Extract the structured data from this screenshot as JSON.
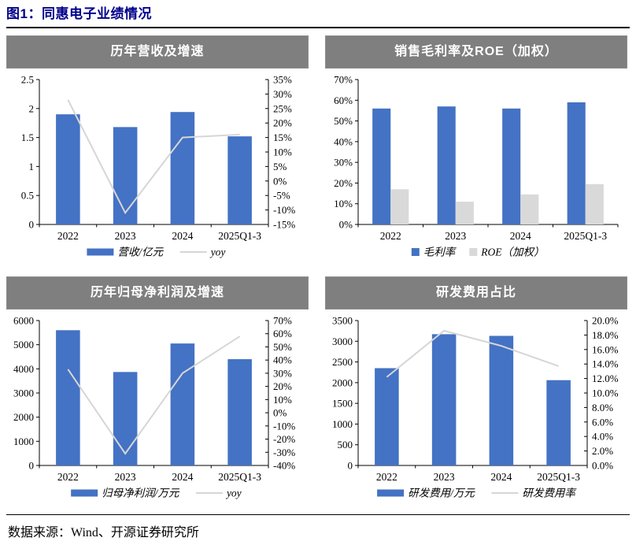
{
  "header": {
    "title": "图1：同惠电子业绩情况"
  },
  "footer": {
    "source": "数据来源：Wind、开源证券研究所"
  },
  "colors": {
    "accent_blue": "#4472C4",
    "gray_bar": "#D9D9D9",
    "line_gray": "#D6D6D6",
    "panel_header_bg": "#7F7F7F",
    "title_navy": "#00008B",
    "axis_black": "#000000"
  },
  "chart_data": [
    {
      "type": "bar+line",
      "title": "历年营收及增速",
      "categories": [
        "2022",
        "2023",
        "2024",
        "2025Q1-3"
      ],
      "bar_series": [
        {
          "name": "营收/亿元",
          "color": "#4472C4",
          "swatch": "bar",
          "values": [
            1.9,
            1.68,
            1.94,
            1.52
          ]
        }
      ],
      "line_series": [
        {
          "name": "yoy",
          "color": "#D6D6D6",
          "values": [
            0.28,
            -0.11,
            0.15,
            0.16
          ]
        }
      ],
      "left_axis": {
        "min": 0,
        "max": 2.5,
        "step": 0.5,
        "format": "num"
      },
      "right_axis": {
        "min": -0.15,
        "max": 0.35,
        "step": 0.05,
        "format": "pct0"
      },
      "grid": false,
      "legend_position": "bottom"
    },
    {
      "type": "bar",
      "title": "销售毛利率及ROE（加权）",
      "categories": [
        "2022",
        "2023",
        "2024",
        "2025Q1-3"
      ],
      "bar_series": [
        {
          "name": "毛利率",
          "color": "#4472C4",
          "swatch": "square",
          "values": [
            0.56,
            0.57,
            0.56,
            0.59
          ]
        },
        {
          "name": "ROE（加权）",
          "color": "#D9D9D9",
          "swatch": "square",
          "values": [
            0.17,
            0.11,
            0.145,
            0.195
          ]
        }
      ],
      "line_series": [],
      "left_axis": {
        "min": 0,
        "max": 0.7,
        "step": 0.1,
        "format": "pct0"
      },
      "right_axis": null,
      "grid": false,
      "legend_position": "bottom"
    },
    {
      "type": "bar+line",
      "title": "历年归母净利润及增速",
      "categories": [
        "2022",
        "2023",
        "2024",
        "2025Q1-3"
      ],
      "bar_series": [
        {
          "name": "归母净利润/万元",
          "color": "#4472C4",
          "swatch": "bar",
          "values": [
            5600,
            3870,
            5050,
            4400
          ]
        }
      ],
      "line_series": [
        {
          "name": "yoy",
          "color": "#D6D6D6",
          "values": [
            0.33,
            -0.31,
            0.3,
            0.58
          ]
        }
      ],
      "left_axis": {
        "min": 0,
        "max": 6000,
        "step": 1000,
        "format": "num"
      },
      "right_axis": {
        "min": -0.4,
        "max": 0.7,
        "step": 0.1,
        "format": "pct0"
      },
      "grid": false,
      "legend_position": "bottom"
    },
    {
      "type": "bar+line",
      "title": "研发费用占比",
      "categories": [
        "2022",
        "2023",
        "2024",
        "2025Q1-3"
      ],
      "bar_series": [
        {
          "name": "研发费用/万元",
          "color": "#4472C4",
          "swatch": "bar",
          "values": [
            2350,
            3170,
            3130,
            2060
          ]
        }
      ],
      "line_series": [
        {
          "name": "研发费用率",
          "color": "#D6D6D6",
          "values": [
            0.122,
            0.186,
            0.165,
            0.137
          ]
        }
      ],
      "left_axis": {
        "min": 0,
        "max": 3500,
        "step": 500,
        "format": "num"
      },
      "right_axis": {
        "min": 0,
        "max": 0.2,
        "step": 0.02,
        "format": "pct1"
      },
      "grid": false,
      "legend_position": "bottom"
    }
  ]
}
